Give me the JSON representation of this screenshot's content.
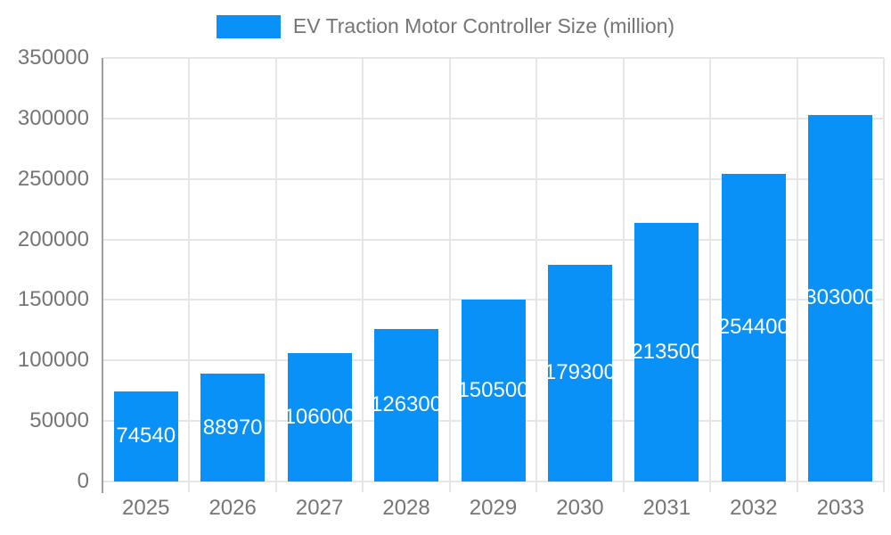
{
  "chart_data": {
    "type": "bar",
    "title": "EV Traction Motor Controller Size (million)",
    "categories": [
      "2025",
      "2026",
      "2027",
      "2028",
      "2029",
      "2030",
      "2031",
      "2032",
      "2033"
    ],
    "values": [
      74540,
      88970,
      106000,
      126300,
      150500,
      179300,
      213500,
      254400,
      303000
    ],
    "xlabel": "",
    "ylabel": "",
    "ylim": [
      0,
      350000
    ],
    "ytick_step": 50000,
    "ytick_labels": [
      "0",
      "50000",
      "100000",
      "150000",
      "200000",
      "250000",
      "300000",
      "350000"
    ],
    "grid": true,
    "legend_position": "top-center",
    "value_label_position": "centered-inside-bar",
    "colors": {
      "bar": "#0991f7",
      "bar_value_label": "#ffffff",
      "axis_text": "#757575",
      "grid_line": "#e6e6e6",
      "axis_line": "#9e9e9e",
      "background": "#ffffff"
    }
  }
}
